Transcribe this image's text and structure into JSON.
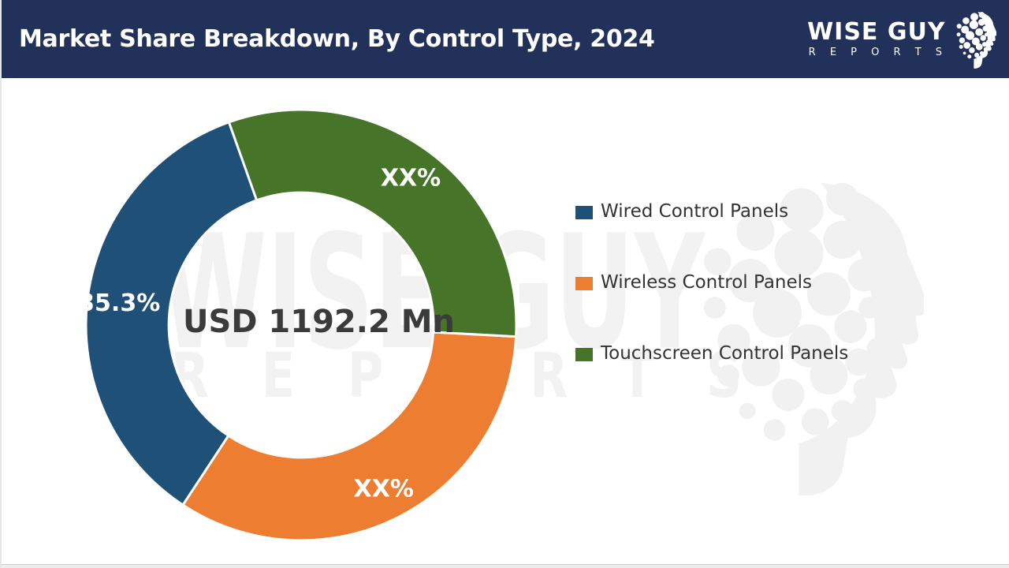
{
  "header": {
    "title": "Market Share Breakdown, By Control Type, 2024",
    "bg_color": "#21315a",
    "logo": {
      "name": "WISE GUY",
      "subtitle": "R E P O R T S"
    }
  },
  "chart_data": {
    "type": "pie",
    "subtype": "donut",
    "title": "Market Share Breakdown, By Control Type, 2024",
    "center_label": "USD 1192.2 Mn",
    "start_angle_deg": 109.6,
    "direction": "counterclockwise",
    "inner_radius_ratio": 0.615,
    "legend_position": "right",
    "grid": false,
    "segments": [
      {
        "name": "Wired Control Panels",
        "color": "#1f5078",
        "label": "35.3%",
        "value_pct": 35.3
      },
      {
        "name": "Wireless Control Panels",
        "color": "#ed7d31",
        "label": "XX%",
        "value_pct": 33.4
      },
      {
        "name": "Touchscreen Control Panels",
        "color": "#467428",
        "label": "XX%",
        "value_pct": 31.3
      }
    ]
  },
  "watermark": {
    "line1": "WISE GUY",
    "line2": "R E P O R T S"
  }
}
